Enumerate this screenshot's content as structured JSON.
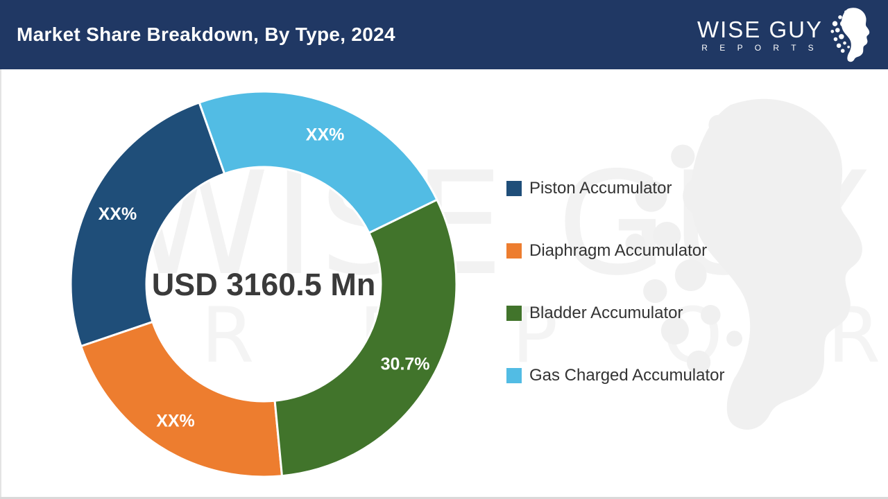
{
  "header": {
    "title": "Market Share Breakdown, By Type, 2024",
    "logo": {
      "line1": "WISE GUY",
      "line2": "R E P O R T S",
      "icon": "head-profile-dots-icon"
    }
  },
  "colors": {
    "header_bg": "#203864",
    "piston_navy": "#1F4E79",
    "diaphragm_orange": "#ED7D2F",
    "bladder_green": "#41742B",
    "gas_light_blue": "#52BCE4",
    "center_text": "#3A3A3A",
    "legend_text": "#333333",
    "watermark": "#F2F2F2",
    "bottom_line": "#D9D9D9"
  },
  "chart_data": {
    "type": "donut",
    "title": "Market Share Breakdown, By Type, 2024",
    "center_label": "USD 3160.5 Mn",
    "start_angle_deg": -19.5,
    "legend_position": "right",
    "slices": [
      {
        "name": "Gas Charged Accumulator",
        "pct": 23.2,
        "label": "XX%",
        "color": "#52BCE4"
      },
      {
        "name": "Bladder Accumulator",
        "pct": 30.7,
        "label": "30.7%",
        "color": "#41742B"
      },
      {
        "name": "Diaphragm Accumulator",
        "pct": 21.3,
        "label": "XX%",
        "color": "#ED7D2F"
      },
      {
        "name": "Piston Accumulator",
        "pct": 24.8,
        "label": "XX%",
        "color": "#1F4E79"
      }
    ]
  },
  "legend": {
    "items": [
      {
        "label": "Piston Accumulator",
        "color": "#1F4E79"
      },
      {
        "label": "Diaphragm Accumulator",
        "color": "#ED7D2F"
      },
      {
        "label": "Bladder Accumulator",
        "color": "#41742B"
      },
      {
        "label": "Gas Charged Accumulator",
        "color": "#52BCE4"
      }
    ]
  },
  "watermark": {
    "line1": "WISE GUY",
    "line2": "R E P O R T S"
  }
}
